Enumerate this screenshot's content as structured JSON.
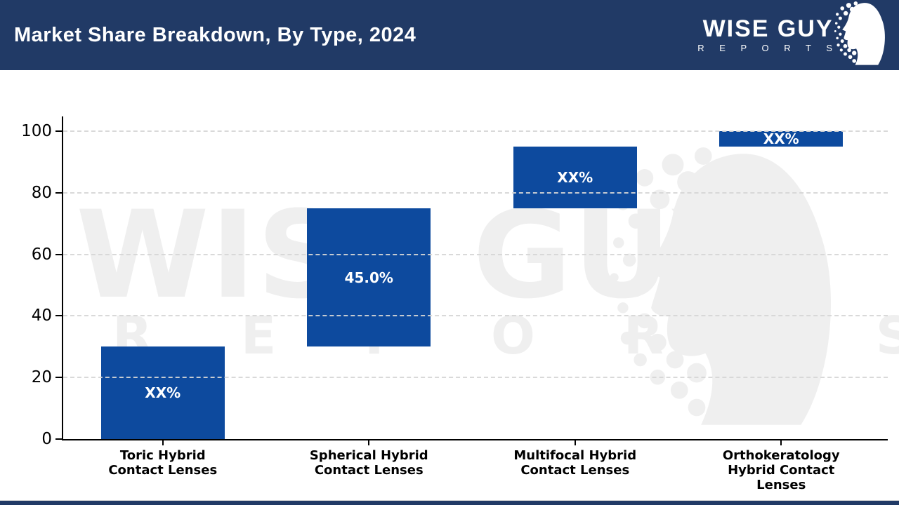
{
  "header": {
    "title": "Market Share Breakdown, By Type, 2024",
    "bg_color": "#213a66",
    "logo": {
      "line1": "WISE GUY",
      "line2": "R E P O R T S"
    }
  },
  "watermark": {
    "line1": "WISE GUY",
    "line2": "R E P O R T S",
    "color": "#efefef"
  },
  "chart_data": {
    "type": "bar",
    "subtype": "waterfall-breakdown",
    "title": "Market Share Breakdown, By Type, 2024",
    "categories": [
      "Toric Hybrid Contact Lenses",
      "Spherical Hybrid Contact Lenses",
      "Multifocal Hybrid Contact Lenses",
      "Orthokeratology Hybrid Contact Lenses"
    ],
    "category_label_lines": [
      [
        "Toric Hybrid",
        "Contact Lenses"
      ],
      [
        "Spherical Hybrid",
        "Contact Lenses"
      ],
      [
        "Multifocal Hybrid",
        "Contact Lenses"
      ],
      [
        "Orthokeratology",
        "Hybrid Contact",
        "Lenses"
      ]
    ],
    "segments": [
      {
        "category": "Toric Hybrid Contact Lenses",
        "start": 0,
        "end": 30,
        "label": "XX%"
      },
      {
        "category": "Spherical Hybrid Contact Lenses",
        "start": 30,
        "end": 75,
        "label": "45.0%"
      },
      {
        "category": "Multifocal Hybrid Contact Lenses",
        "start": 75,
        "end": 95,
        "label": "XX%"
      },
      {
        "category": "Orthokeratology Hybrid Contact Lenses",
        "start": 95,
        "end": 100,
        "label": "XX%"
      }
    ],
    "ylim": [
      0,
      100
    ],
    "yticks": [
      0,
      20,
      40,
      60,
      80,
      100
    ],
    "xlabel": "",
    "ylabel": "",
    "grid": "dashed-horizontal",
    "legend": "none",
    "bar_color": "#0d4a9e",
    "bar_label_color": "#ffffff",
    "axis_color": "#000000"
  },
  "footer": {
    "stripe_color": "#213a66"
  }
}
